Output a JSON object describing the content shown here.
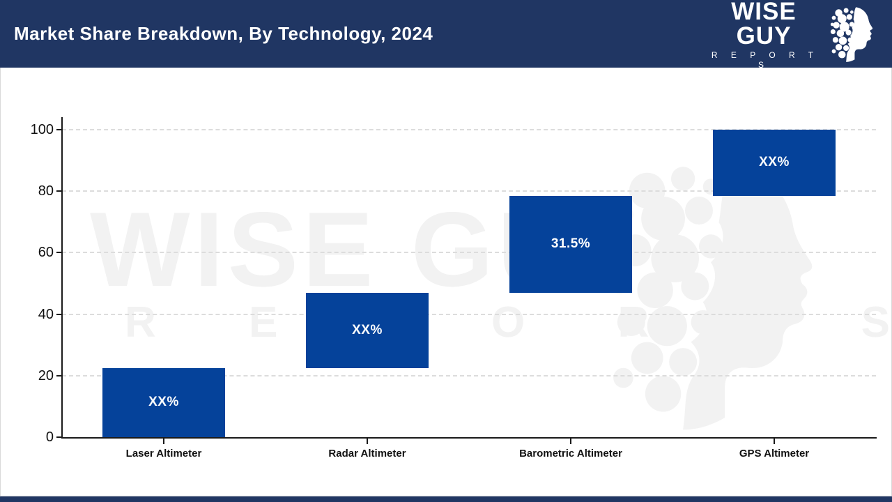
{
  "header": {
    "title": "Market Share Breakdown, By Technology, 2024",
    "logo": {
      "line1": "WISE GUY",
      "line2": "R E P O R T S"
    }
  },
  "watermark": {
    "line1": "WISE GU",
    "line2": "R E P O R T S"
  },
  "chart_data": {
    "type": "bar",
    "subtype": "floating-waterfall",
    "title": "Market Share Breakdown, By Technology, 2024",
    "categories": [
      "Laser Altimeter",
      "Radar Altimeter",
      "Barometric Altimeter",
      "GPS Altimeter"
    ],
    "segments": [
      {
        "category": "Laser Altimeter",
        "start": 0,
        "end": 22.5,
        "label": "XX%"
      },
      {
        "category": "Radar Altimeter",
        "start": 22.5,
        "end": 47,
        "label": "XX%"
      },
      {
        "category": "Barometric Altimeter",
        "start": 47,
        "end": 78.5,
        "label": "31.5%"
      },
      {
        "category": "GPS Altimeter",
        "start": 78.5,
        "end": 100,
        "label": "XX%"
      }
    ],
    "ylim": [
      0,
      100
    ],
    "yticks": [
      0,
      20,
      40,
      60,
      80,
      100
    ],
    "xlabel": "",
    "ylabel": "",
    "grid": "horizontal-dashed",
    "legend": "none",
    "bar_color": "#05429A",
    "bar_label_color": "#FFFFFF"
  },
  "colors": {
    "header_bg": "#203663",
    "footer_bg": "#203663",
    "bar": "#05429A",
    "grid": "#DCDCDC",
    "watermark": "#F2F2F2",
    "axis": "#1A1A1A"
  }
}
